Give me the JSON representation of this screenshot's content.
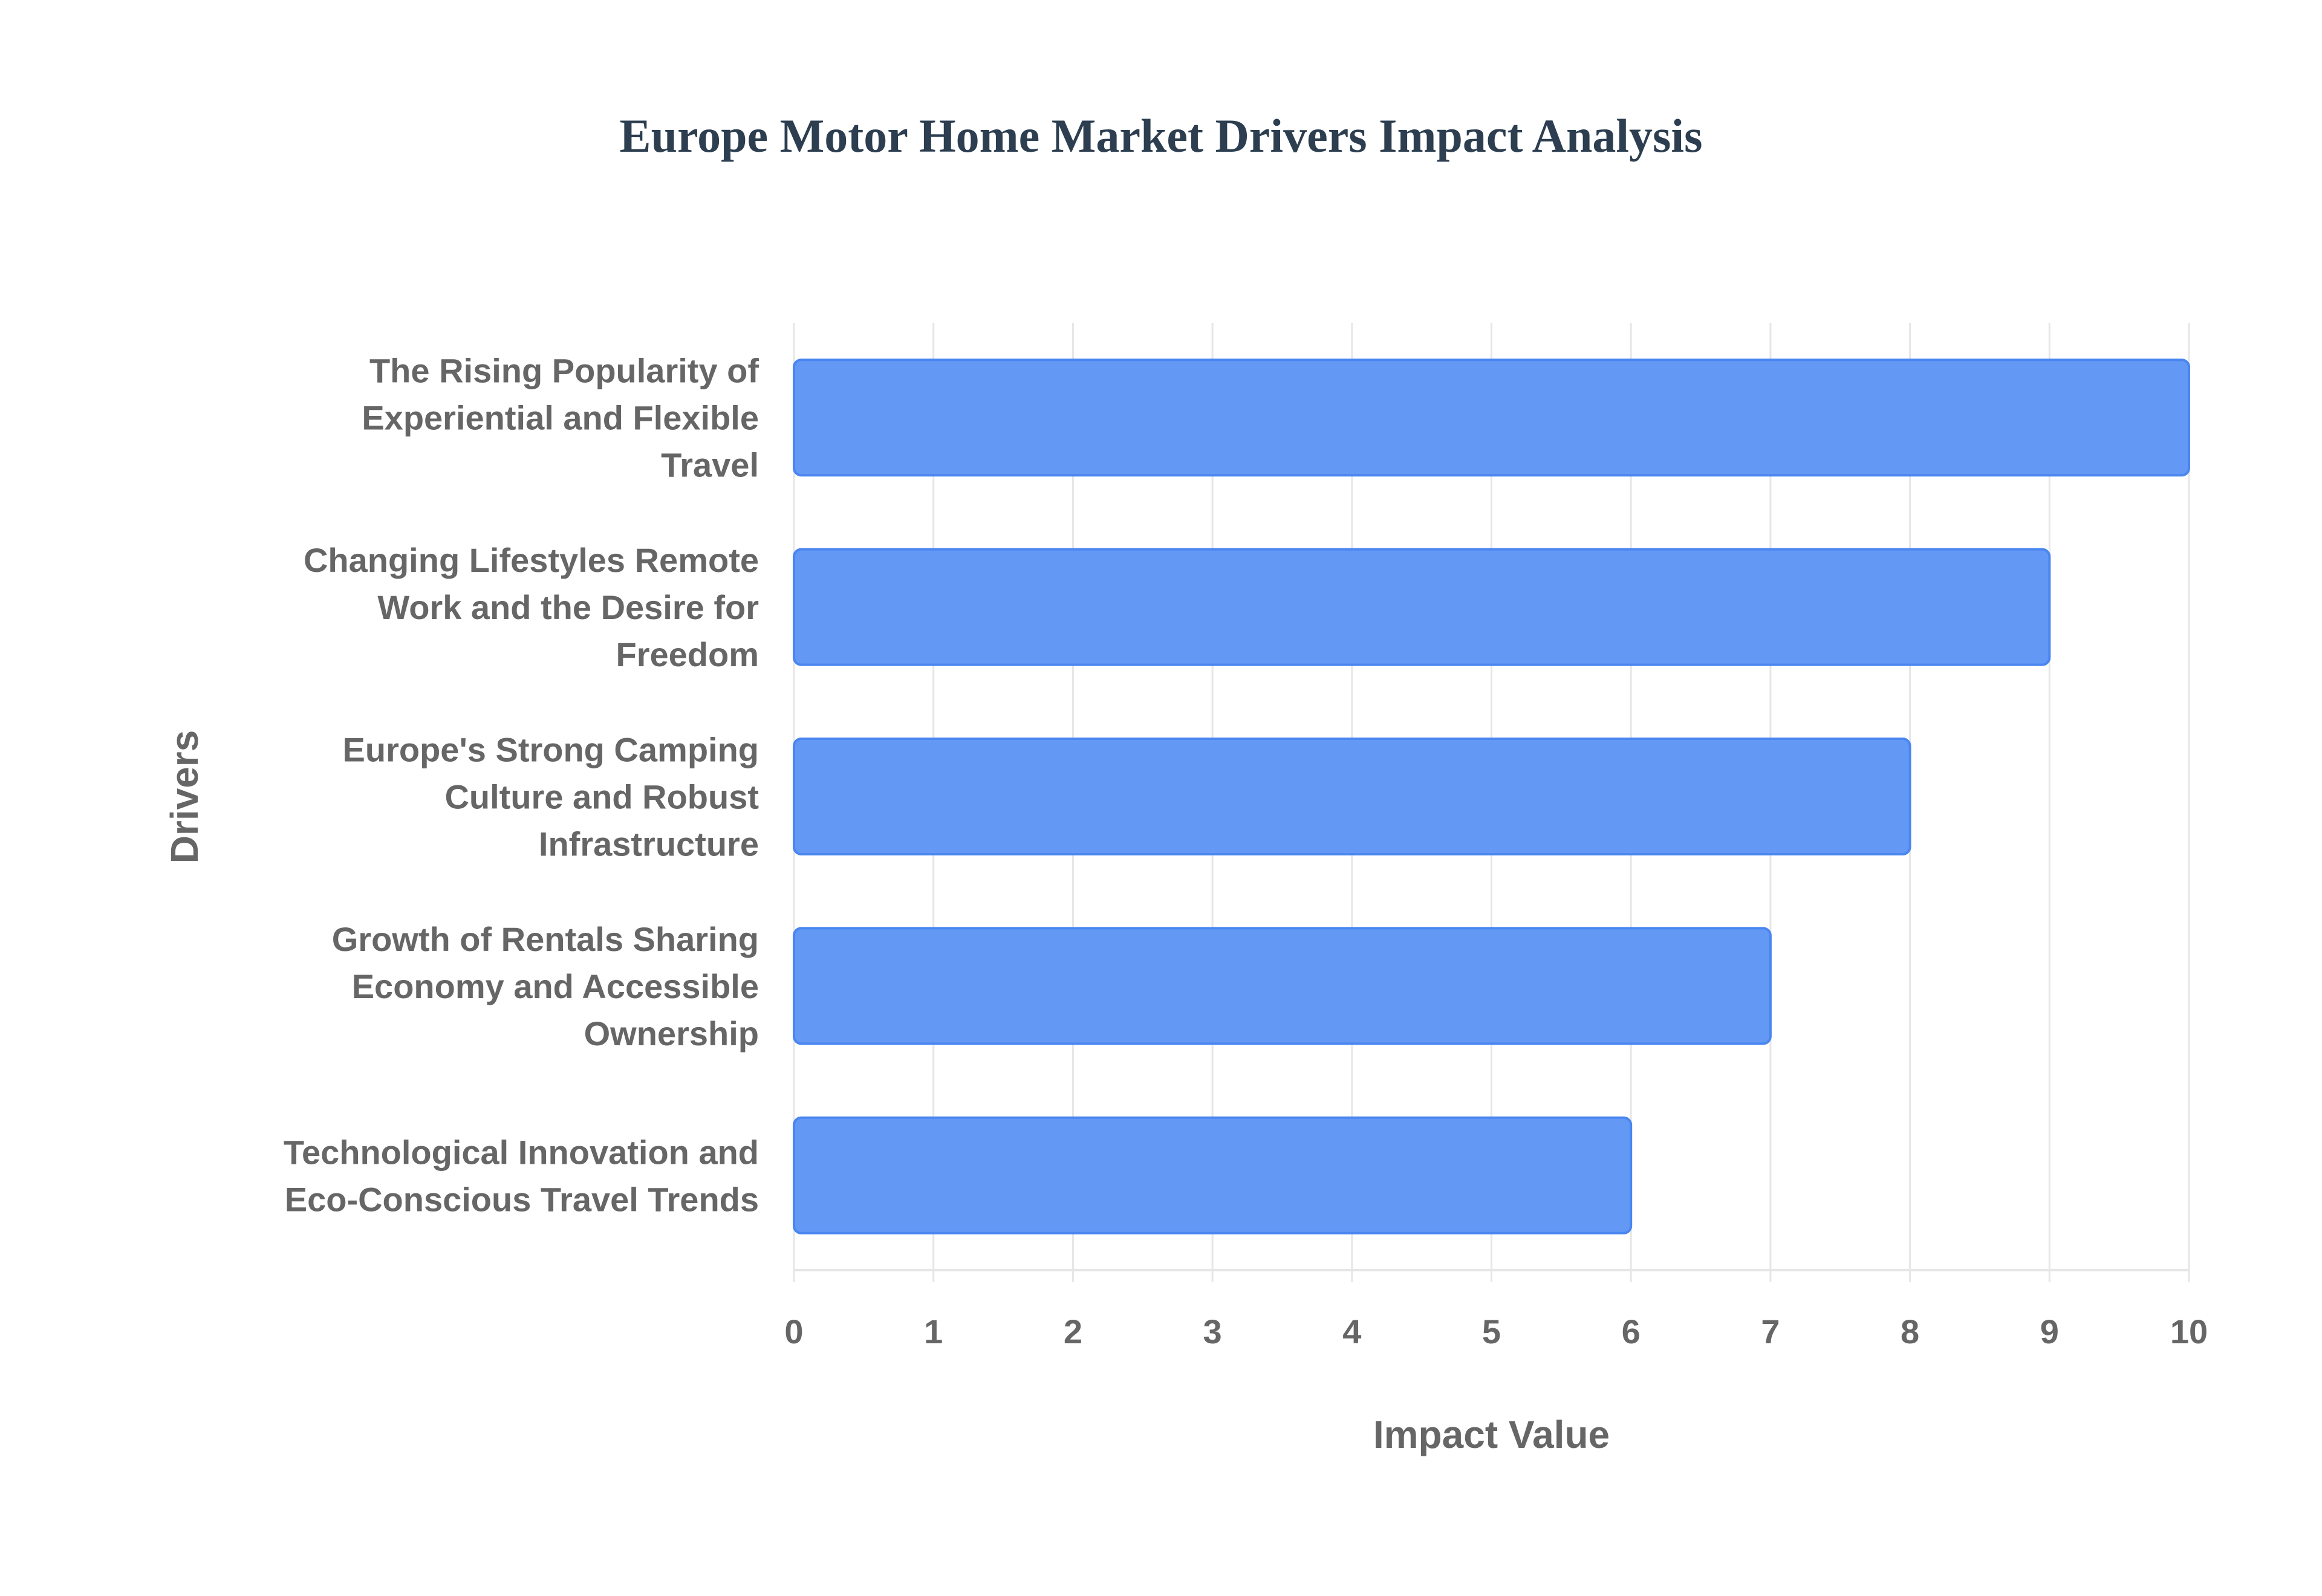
{
  "chart_data": {
    "type": "bar",
    "orientation": "horizontal",
    "title": "Europe Motor Home Market Drivers Impact Analysis",
    "xlabel": "Impact Value",
    "ylabel": "Drivers",
    "categories": [
      [
        "The Rising Popularity of",
        "Experiential and Flexible",
        "Travel"
      ],
      [
        "Changing Lifestyles Remote",
        "Work and the Desire for",
        "Freedom"
      ],
      [
        "Europe's Strong Camping",
        "Culture and Robust",
        "Infrastructure"
      ],
      [
        "Growth of Rentals Sharing",
        "Economy and Accessible",
        "Ownership"
      ],
      [
        "Technological Innovation and",
        "Eco-Conscious Travel Trends"
      ]
    ],
    "values": [
      10,
      9,
      8,
      7,
      6
    ],
    "xlim": [
      0,
      10
    ],
    "xticks": [
      "0",
      "1",
      "2",
      "3",
      "4",
      "5",
      "6",
      "7",
      "8",
      "9",
      "10"
    ],
    "grid": true,
    "bar_color": "#6399f5",
    "bar_border_color": "#4a86f0"
  }
}
